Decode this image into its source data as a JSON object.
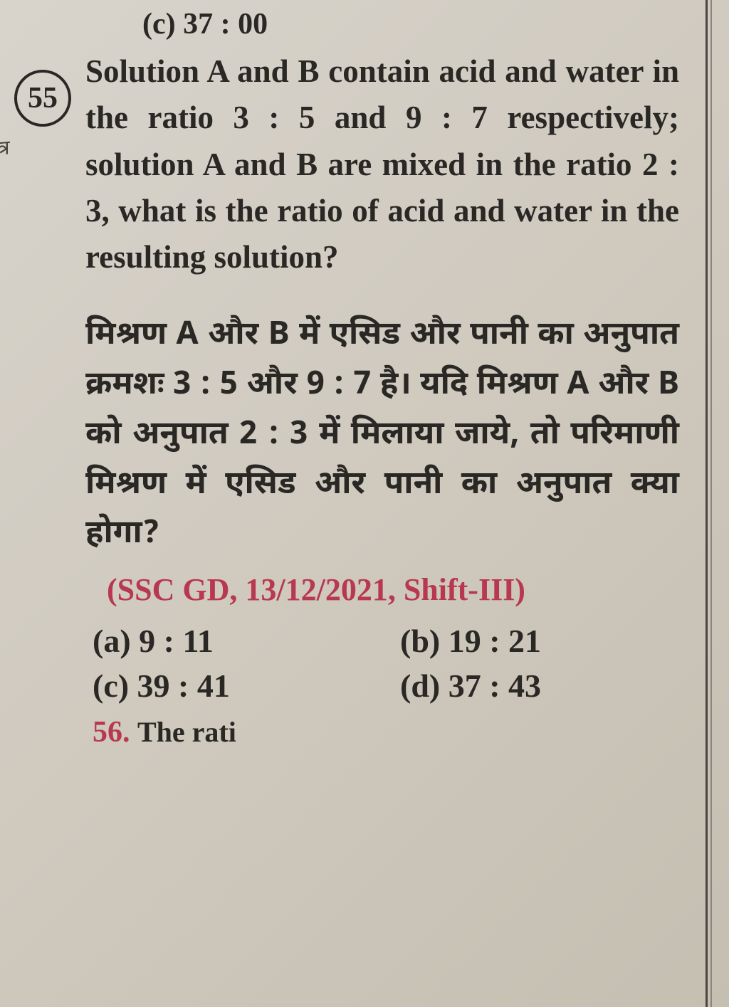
{
  "top_partial": "(c) 37 : 00",
  "question": {
    "number": "55",
    "left_edge_text": "त्र",
    "english": "Solution A and B contain acid and water in the ratio 3 : 5 and 9 : 7 respectively; solution A and B are mixed in the ratio 2 : 3, what is the ratio of acid and water in the resulting solution?",
    "hindi": "मिश्रण A और B में एसिड और पानी का अनुपात क्रमशः 3 : 5 और 9 : 7 है। यदि मिश्रण A और B को अनुपात 2 : 3 में मिलाया जाये, तो परिमाणी मिश्रण में एसिड और पानी का अनुपात क्या होगा?",
    "source": "(SSC GD, 13/12/2021, Shift-III)",
    "options": {
      "a": "(a) 9 : 11",
      "b": "(b) 19 : 21",
      "c": "(c) 39 : 41",
      "d": "(d) 37 : 43"
    }
  },
  "next_question": {
    "number": "56.",
    "partial_text": " The rati"
  },
  "colors": {
    "text": "#2a2825",
    "source": "#b83850",
    "background": "#d8d4cc"
  }
}
